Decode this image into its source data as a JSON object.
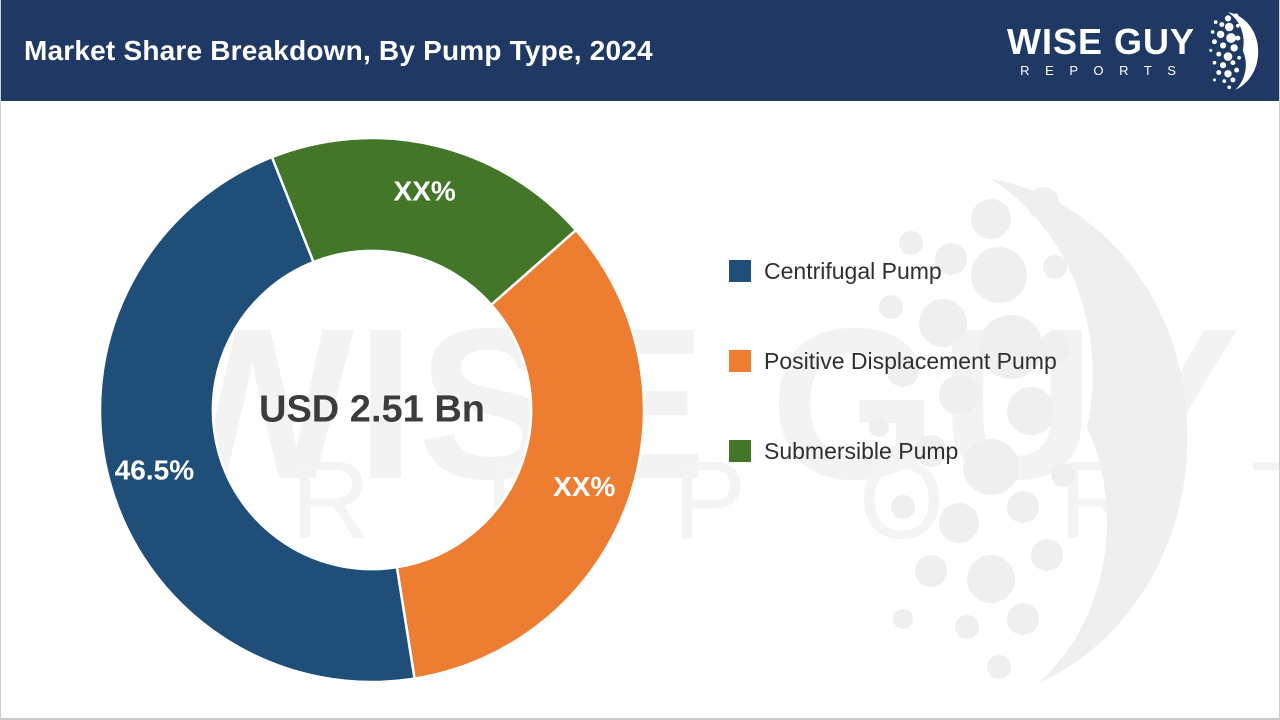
{
  "header": {
    "title": "Market Share Breakdown, By Pump Type, 2024",
    "logo": {
      "wordmark": "WISE GUY",
      "subtext": "R E P O R T S"
    }
  },
  "watermark": {
    "wordmark": "WISE GUY",
    "subtext": "R E P O R T S"
  },
  "chart_data": {
    "type": "pie",
    "subtype": "donut",
    "title": "Market Share Breakdown, By Pump Type, 2024",
    "center_label": "USD 2.51 Bn",
    "segments": [
      {
        "name": "Centrifugal Pump",
        "value": 46.5,
        "display_label": "46.5%",
        "color": "#1F4E79"
      },
      {
        "name": "Positive Displacement Pump",
        "value": 34.0,
        "display_label": "XX%",
        "color": "#ED7D31"
      },
      {
        "name": "Submersible Pump",
        "value": 19.5,
        "display_label": "XX%",
        "color": "#44762A"
      }
    ],
    "start_angle_deg": -21.6,
    "direction": "clockwise",
    "draw_order": [
      2,
      1,
      0
    ],
    "donut_hole_ratio": 0.585,
    "separator_color": "#ffffff",
    "label_color": "#ffffff",
    "legend_position": "right"
  }
}
